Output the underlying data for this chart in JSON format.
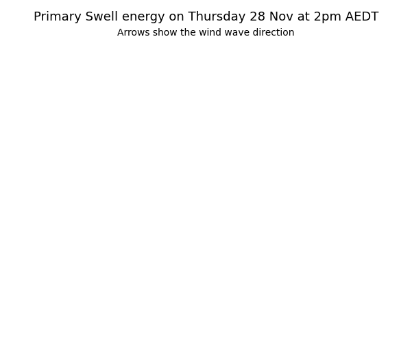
{
  "title": "Primary Swell energy on Thursday 28 Nov at 2pm AEDT",
  "subtitle": "Arrows show the wind wave direction",
  "title_fontsize": 13,
  "subtitle_fontsize": 10,
  "map_extent": [
    108,
    160,
    -48,
    -5
  ],
  "background_color": "#ffffff",
  "ocean_color": "#ffffff",
  "land_color": "#aaaaaa",
  "border_color": "#000000",
  "border_linewidth": 0.7,
  "coastline_color": "#000000",
  "coastline_linewidth": 0.7,
  "figsize": [
    6.01,
    5.17
  ],
  "dpi": 100
}
